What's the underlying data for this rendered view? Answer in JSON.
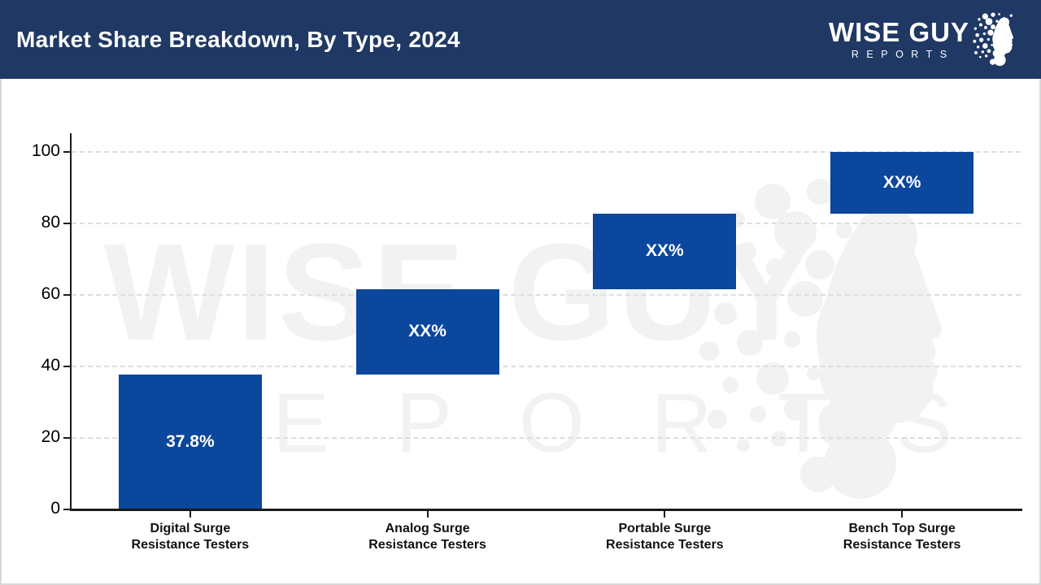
{
  "header": {
    "title": "Market Share Breakdown, By Type, 2024",
    "logo": {
      "name": "WISE GUY",
      "sub": "REPORTS"
    }
  },
  "watermark": {
    "line1": "WISE GUY",
    "line2": "REPORTS"
  },
  "colors": {
    "header_bg": "#1f3864",
    "bar": "#0b479d",
    "bar_label": "#ffffff",
    "grid": "#dddddd",
    "axis": "#1a1a1a",
    "watermark": "#f2f2f2",
    "page_border": "#d9d9d9"
  },
  "chart_data": {
    "type": "bar",
    "subtype": "waterfall-cumulative",
    "title": "Market Share Breakdown, By Type, 2024",
    "categories": [
      "Digital Surge\nResistance Testers",
      "Analog Surge\nResistance Testers",
      "Portable Surge\nResistance Testers",
      "Bench Top Surge\nResistance Testers"
    ],
    "series": [
      {
        "name": "Market Share",
        "segments": [
          {
            "start": 0,
            "end": 37.8,
            "label": "37.8%"
          },
          {
            "start": 37.8,
            "end": 61.6,
            "label": "XX%"
          },
          {
            "start": 61.6,
            "end": 82.8,
            "label": "XX%"
          },
          {
            "start": 82.8,
            "end": 100,
            "label": "XX%"
          }
        ]
      }
    ],
    "xlabel": "",
    "ylabel": "",
    "ylim": [
      0,
      100
    ],
    "yticks": [
      0,
      20,
      40,
      60,
      80,
      100
    ],
    "grid": "horizontal-dashed",
    "legend": "none"
  }
}
